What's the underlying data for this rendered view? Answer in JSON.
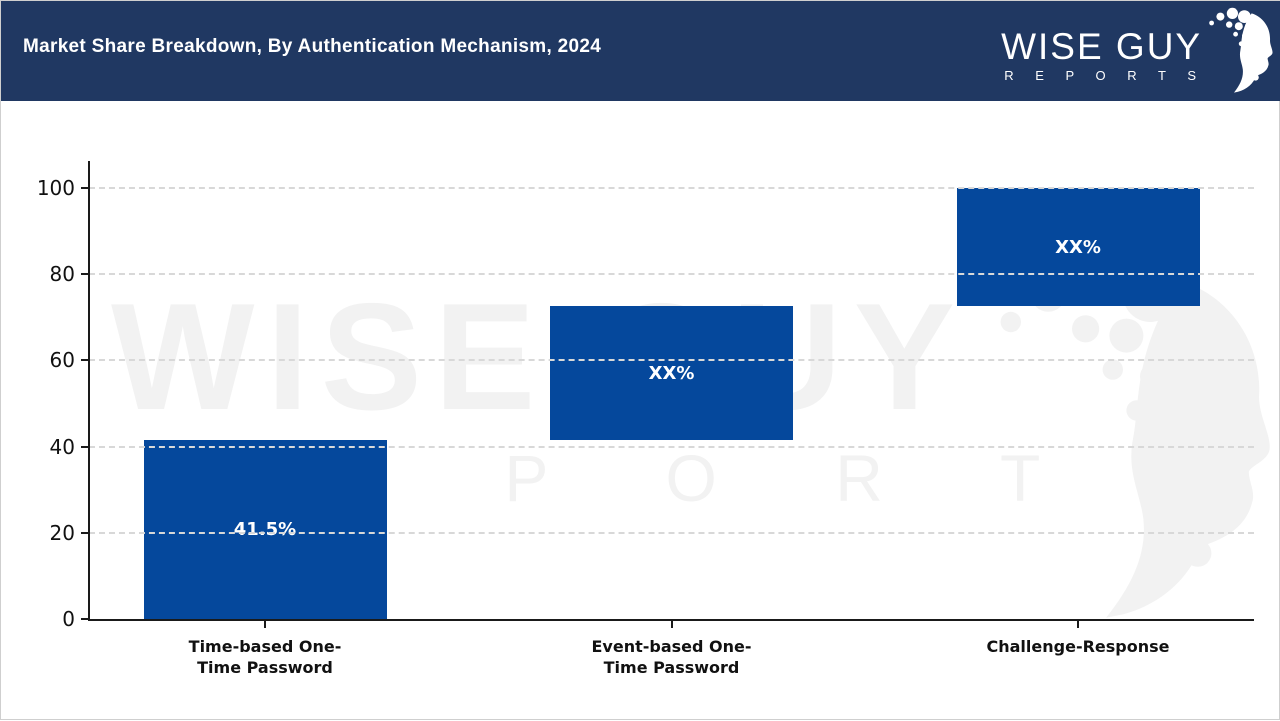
{
  "header": {
    "title": "Market Share Breakdown, By Authentication Mechanism, 2024",
    "logo": {
      "name_top": "WISE GUY",
      "name_bottom": "R E P O R T S"
    }
  },
  "watermark": {
    "text_top": "WISE GUY",
    "text_bottom": "R E P O R T S"
  },
  "chart_data": {
    "type": "bar",
    "subtype": "waterfall-stacked-progression",
    "title": "Market Share Breakdown, By Authentication Mechanism, 2024",
    "categories": [
      "Time-based One-Time Password",
      "Event-based One-Time Password",
      "Challenge-Response"
    ],
    "category_lines": [
      [
        "Time-based One-",
        "Time Password"
      ],
      [
        "Event-based One-",
        "Time Password"
      ],
      [
        "Challenge-Response"
      ]
    ],
    "segments": [
      {
        "category": "Time-based One-Time Password",
        "label": "41.5%",
        "start": 0,
        "end": 41.5,
        "value": 41.5
      },
      {
        "category": "Event-based One-Time Password",
        "label": "XX%",
        "start": 41.5,
        "end": 72.6,
        "value_estimated": 31.1
      },
      {
        "category": "Challenge-Response",
        "label": "XX%",
        "start": 72.6,
        "end": 100,
        "value_estimated": 27.4
      }
    ],
    "ylim": [
      0,
      100
    ],
    "yticks": [
      0,
      20,
      40,
      60,
      80,
      100
    ],
    "xlabel": "",
    "ylabel": "",
    "grid": true,
    "legend": false,
    "bar_color": "#05489c"
  },
  "colors": {
    "header_bg": "#203862",
    "bar": "#05489c",
    "grid": "#d8d8d8",
    "axis": "#1a1a1a",
    "watermark": "#f2f2f2",
    "value_label": "#ffffff"
  }
}
